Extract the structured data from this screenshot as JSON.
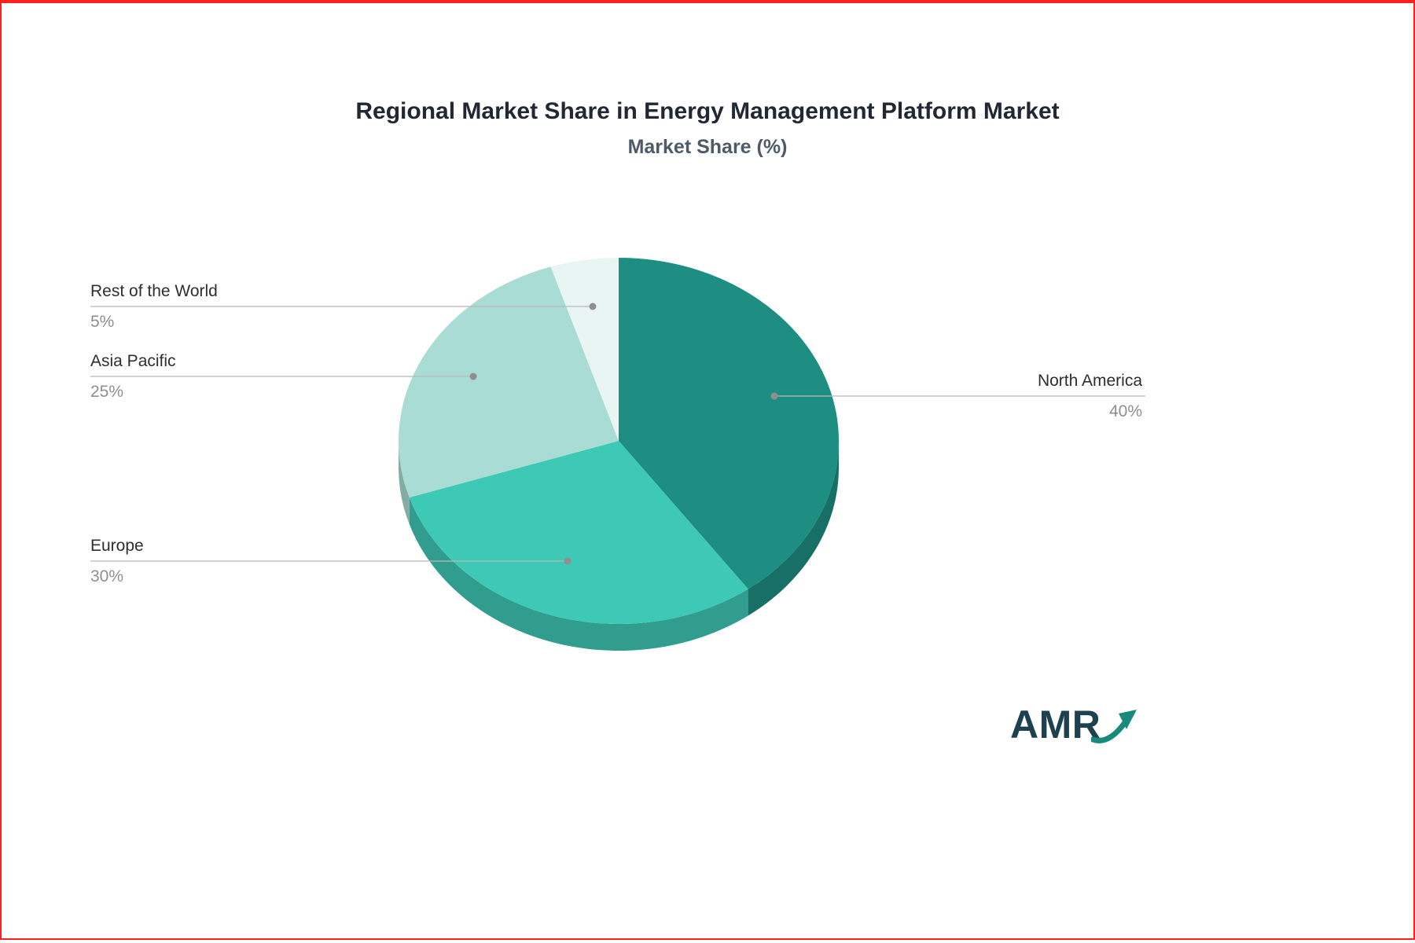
{
  "page": {
    "background": "#ffffff",
    "border_color": "#ff2020"
  },
  "chart_data": {
    "type": "pie",
    "title": "Regional Market Share in Energy Management Platform Market",
    "subtitle": "Market Share (%)",
    "unit": "%",
    "style": "3d",
    "direction": "clockwise",
    "start_angle_deg": 0,
    "legend_position": "callout-labels",
    "slices": [
      {
        "label": "North America",
        "value": 40,
        "display": "40%",
        "color": "#1e8e82"
      },
      {
        "label": "Europe",
        "value": 30,
        "display": "30%",
        "color": "#3ec9b6"
      },
      {
        "label": "Asia Pacific",
        "value": 25,
        "display": "25%",
        "color": "#a9dcd4"
      },
      {
        "label": "Rest of the World",
        "value": 5,
        "display": "5%",
        "color": "#e9f5f2"
      }
    ],
    "colors": {
      "title_text": "#212733",
      "subtitle_text": "#4e5a68",
      "label_text": "#2e2e2e",
      "value_text": "#8f8f8f",
      "leader_line": "#b8b8b8",
      "leader_dot": "#8f8f8f"
    }
  },
  "logo": {
    "text": "AMR",
    "text_color": "#1e4150",
    "arrow_color": "#17897d"
  }
}
